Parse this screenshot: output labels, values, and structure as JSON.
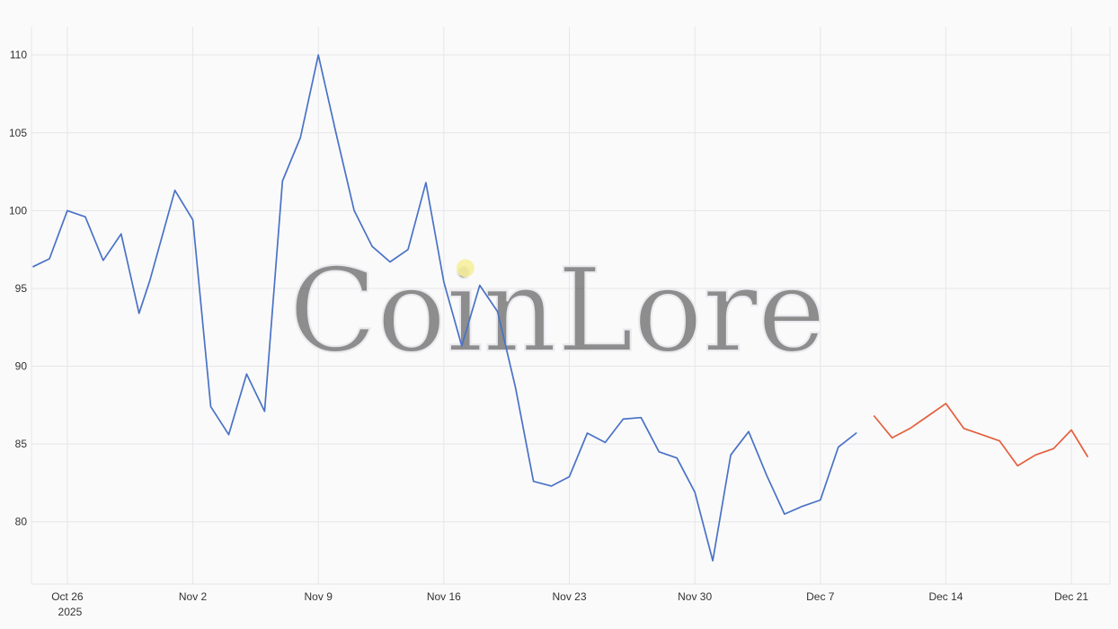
{
  "page": {
    "background": "#fafafa"
  },
  "watermark": {
    "text": "CoinLore",
    "fill": "#ffffff",
    "fill_opacity": 0.55,
    "stroke": "#e9e9ee"
  },
  "chart_data": {
    "type": "line",
    "title": "",
    "xlabel": "",
    "ylabel": "",
    "legend": "none",
    "grid": true,
    "colors": {
      "history": "#4a72c6",
      "prediction": "#e4603e",
      "gridline": "#e6e6ea",
      "tick_text": "#333333"
    },
    "x_axis": {
      "range": [
        0,
        60.15
      ],
      "ticks": [
        {
          "t": 2,
          "label": "Oct 26",
          "sublabel": "2025"
        },
        {
          "t": 9,
          "label": "Nov 2"
        },
        {
          "t": 16,
          "label": "Nov 9"
        },
        {
          "t": 23,
          "label": "Nov 16"
        },
        {
          "t": 30,
          "label": "Nov 23"
        },
        {
          "t": 37,
          "label": "Nov 30"
        },
        {
          "t": 44,
          "label": "Dec 7"
        },
        {
          "t": 51,
          "label": "Dec 14"
        },
        {
          "t": 58,
          "label": "Dec 21"
        }
      ]
    },
    "y_axis": {
      "range": [
        76,
        111.8
      ],
      "ticks": [
        80,
        85,
        90,
        95,
        100,
        105,
        110
      ]
    },
    "series": [
      {
        "name": "price-history",
        "color": "#4a72c6",
        "points": [
          [
            0.1,
            96.4
          ],
          [
            1,
            96.9
          ],
          [
            2,
            100.0
          ],
          [
            3,
            99.6
          ],
          [
            4,
            96.8
          ],
          [
            5,
            98.5
          ],
          [
            6,
            93.4
          ],
          [
            6.6,
            95.5
          ],
          [
            8,
            101.3
          ],
          [
            9,
            99.4
          ],
          [
            10,
            87.4
          ],
          [
            11,
            85.6
          ],
          [
            12,
            89.5
          ],
          [
            13,
            87.1
          ],
          [
            14,
            101.9
          ],
          [
            15,
            104.7
          ],
          [
            16,
            110.0
          ],
          [
            17,
            104.9
          ],
          [
            18,
            100.0
          ],
          [
            19,
            97.7
          ],
          [
            20,
            96.7
          ],
          [
            21,
            97.5
          ],
          [
            22,
            101.8
          ],
          [
            23,
            95.4
          ],
          [
            24,
            91.3
          ],
          [
            25,
            95.2
          ],
          [
            26,
            93.5
          ],
          [
            27,
            88.6
          ],
          [
            28,
            82.6
          ],
          [
            29,
            82.3
          ],
          [
            30,
            82.9
          ],
          [
            31,
            85.7
          ],
          [
            32,
            85.1
          ],
          [
            33,
            86.6
          ],
          [
            34,
            86.7
          ],
          [
            35,
            84.5
          ],
          [
            36,
            84.1
          ],
          [
            37,
            81.9
          ],
          [
            38,
            77.5
          ],
          [
            39,
            84.3
          ],
          [
            40,
            85.8
          ],
          [
            41,
            83.0
          ],
          [
            42,
            80.5
          ],
          [
            43,
            81.0
          ],
          [
            44,
            81.4
          ],
          [
            45,
            84.8
          ],
          [
            46,
            85.7
          ]
        ]
      },
      {
        "name": "price-prediction",
        "color": "#e4603e",
        "points": [
          [
            47,
            86.8
          ],
          [
            48,
            85.4
          ],
          [
            49,
            86.0
          ],
          [
            50,
            86.8
          ],
          [
            51,
            87.6
          ],
          [
            52,
            86.0
          ],
          [
            53,
            85.6
          ],
          [
            54,
            85.2
          ],
          [
            55,
            83.6
          ],
          [
            56,
            84.3
          ],
          [
            57,
            84.7
          ],
          [
            58,
            85.9
          ],
          [
            58.9,
            84.2
          ]
        ]
      }
    ],
    "highlight_marker": {
      "t": 24.2,
      "value": 96.3,
      "color": "#f6f09e",
      "radius": 10,
      "opacity": 0.9
    }
  }
}
